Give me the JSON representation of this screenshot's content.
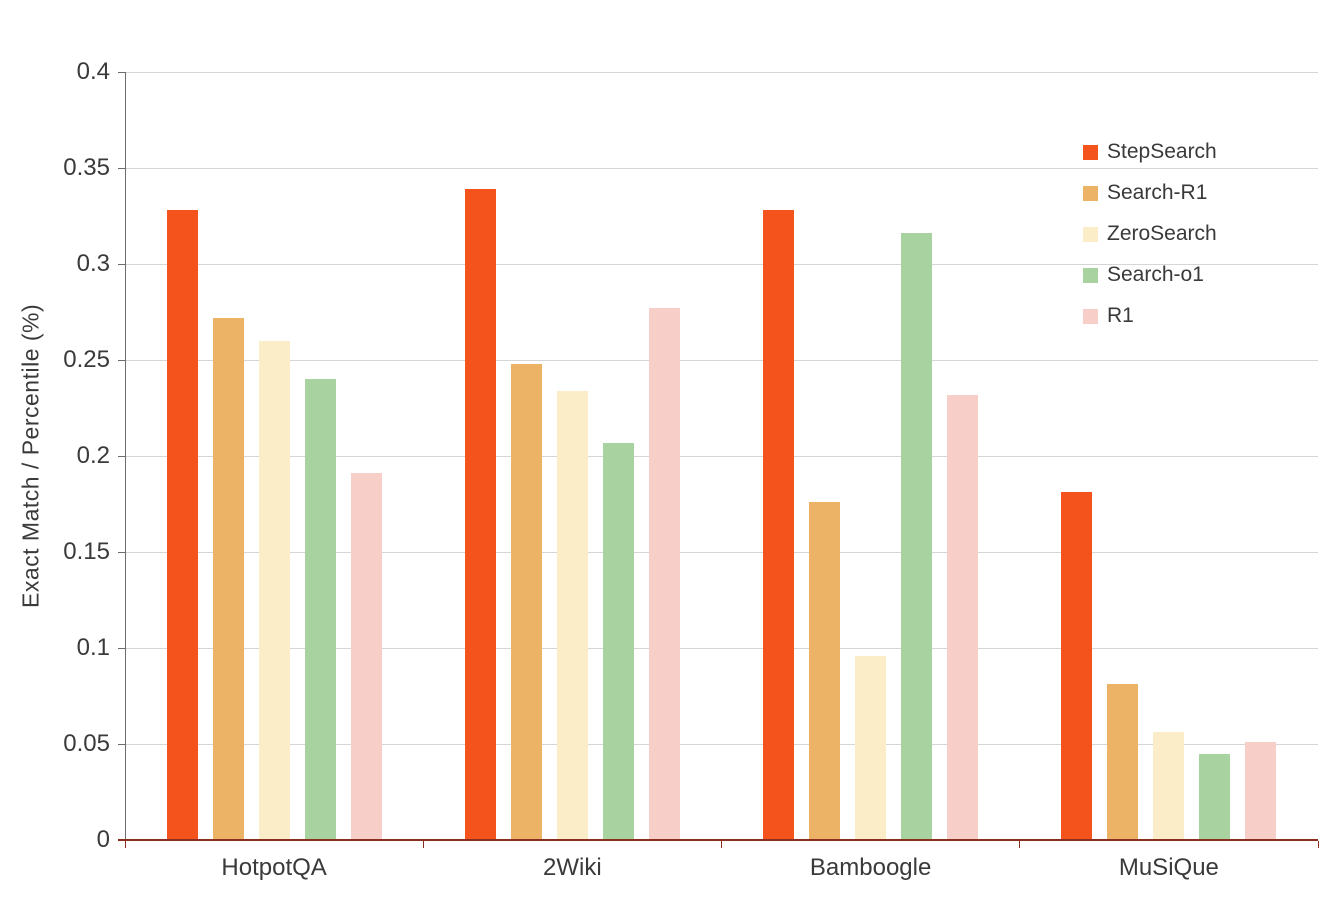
{
  "chart_data": {
    "type": "bar",
    "title": "",
    "ylabel": "Exact Match / Percentile (%)",
    "xlabel": "",
    "ylim": [
      0,
      0.4
    ],
    "yticks": [
      0,
      0.05,
      0.1,
      0.15,
      0.2,
      0.25,
      0.3,
      0.35,
      0.4
    ],
    "categories": [
      "HotpotQA",
      "2Wiki",
      "Bamboogle",
      "MuSiQue"
    ],
    "series": [
      {
        "name": "StepSearch",
        "color": "#F4531B",
        "values": [
          0.328,
          0.339,
          0.328,
          0.181
        ]
      },
      {
        "name": "Search-R1",
        "color": "#ECB266",
        "values": [
          0.272,
          0.248,
          0.176,
          0.081
        ]
      },
      {
        "name": "ZeroSearch",
        "color": "#FAEDC8",
        "values": [
          0.26,
          0.234,
          0.096,
          0.056
        ]
      },
      {
        "name": "Search-o1",
        "color": "#A8D3A0",
        "values": [
          0.24,
          0.207,
          0.316,
          0.045
        ]
      },
      {
        "name": "R1",
        "color": "#F8CFC8",
        "values": [
          0.191,
          0.277,
          0.232,
          0.051
        ]
      }
    ],
    "legend_position": "top-right",
    "grid": true,
    "styles": {
      "grid_color": "#D6D6D6",
      "axis_color": "#6b6b6b",
      "baseline_color": "#8B2E1F",
      "text_color": "#3A3A3A"
    }
  }
}
